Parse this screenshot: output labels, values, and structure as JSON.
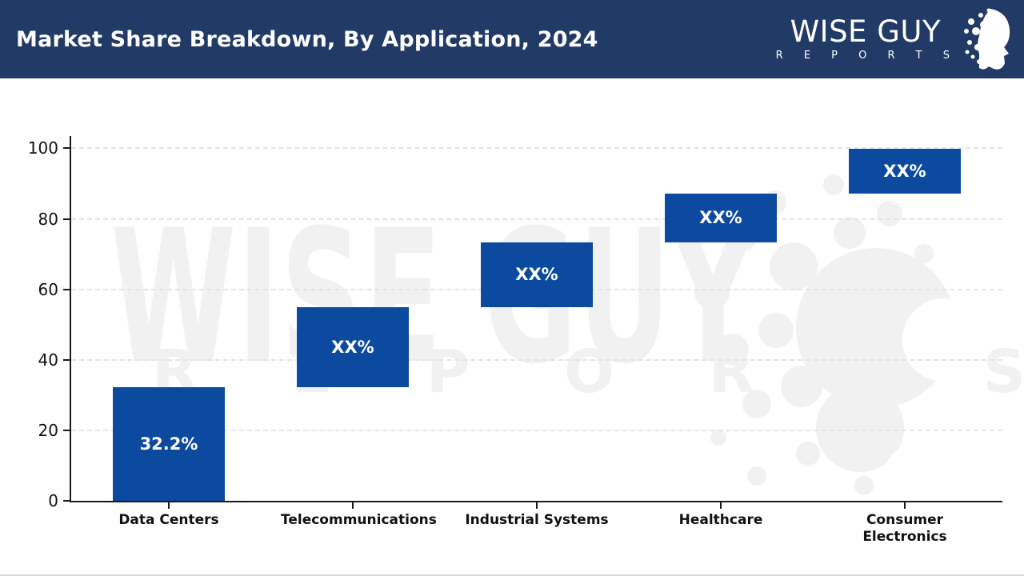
{
  "header": {
    "title": "Market Share Breakdown, By Application, 2024",
    "logo": {
      "name": "WISE GUY",
      "subname": "R E P O R T S"
    }
  },
  "watermark": {
    "line1": "WISE GUY",
    "line2": "R E P O R T S"
  },
  "colors": {
    "header_bg": "#213a66",
    "bar_fill": "#0b4a9e",
    "bar_label": "#ffffff",
    "axis": "#1a1a1a",
    "grid": "#e4e4e4",
    "watermark": "#f1f1f1",
    "tick_text": "#111111"
  },
  "chart_data": {
    "type": "bar",
    "subtype": "floating-waterfall",
    "title": "Market Share Breakdown, By Application, 2024",
    "categories": [
      "Data Centers",
      "Telecommunications",
      "Industrial Systems",
      "Healthcare",
      "Consumer Electronics"
    ],
    "bars": [
      {
        "category": "Data Centers",
        "start": 0,
        "end": 32.2,
        "label": "32.2%"
      },
      {
        "category": "Telecommunications",
        "start": 32.2,
        "end": 55.0,
        "label": "XX%"
      },
      {
        "category": "Industrial Systems",
        "start": 55.0,
        "end": 73.4,
        "label": "XX%"
      },
      {
        "category": "Healthcare",
        "start": 73.4,
        "end": 87.2,
        "label": "XX%"
      },
      {
        "category": "Consumer Electronics",
        "start": 87.2,
        "end": 99.8,
        "label": "XX%"
      }
    ],
    "yticks": [
      0,
      20,
      40,
      60,
      80,
      100
    ],
    "ylim": [
      0,
      103.5
    ],
    "xlabel": "",
    "ylabel": "",
    "grid": "horizontal-dashed",
    "legend": "none",
    "bar_color": "#0b4a9e",
    "label_color": "#ffffff"
  }
}
